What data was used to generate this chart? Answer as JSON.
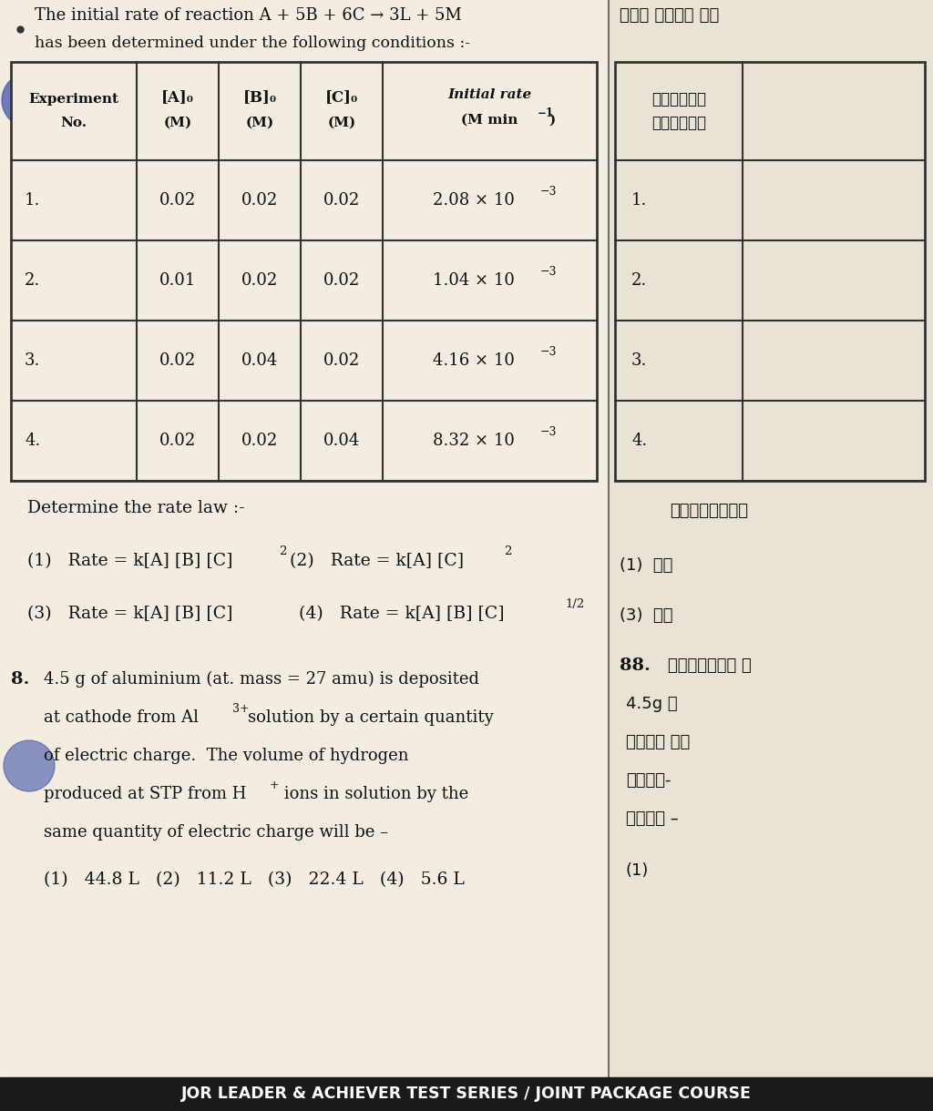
{
  "bg_color": "#e8e3d5",
  "left_bg": "#f2ede0",
  "right_bg": "#e8e3d5",
  "title_line1": "The initial rate of reaction A + 5B + 6C → 3L + 5M",
  "title_line2": "has been determined under the following conditions :-",
  "table_headers_col0": [
    "Experiment",
    "No."
  ],
  "table_headers_col1": [
    "[A]",
    "(M)"
  ],
  "table_headers_col2": [
    "[B]",
    "(M)"
  ],
  "table_headers_col3": [
    "[C]",
    "(M)"
  ],
  "table_headers_col4_line1": "Initial rate",
  "table_headers_col4_line2": "(M min",
  "table_data": [
    [
      "1.",
      "0.02",
      "0.02",
      "0.02",
      "2.08 × 10"
    ],
    [
      "2.",
      "0.01",
      "0.02",
      "0.02",
      "1.04 × 10"
    ],
    [
      "3.",
      "0.02",
      "0.04",
      "0.02",
      "4.16 × 10"
    ],
    [
      "4.",
      "0.02",
      "0.02",
      "0.04",
      "8.32 × 10"
    ]
  ],
  "rate_exponents": [
    "−3",
    "−3",
    "−3",
    "−3"
  ],
  "determine_text": "Determine the rate law :-",
  "opt1_part1": "(1)   Rate = k[A] [B] [C]",
  "opt1_sup": "2",
  "opt1_part2": "(2)   Rate = k[A] [C]",
  "opt1_sup2": "2",
  "opt2_part1": "(3)   Rate = k[A] [B] [C]",
  "opt2_part2": "   (4)   Rate = k[A] [B] [C]",
  "opt2_sup2": "1/2",
  "q8_num": "8.",
  "q8_line1": "4.5 g of aluminium (at. mass = 27 amu) is deposited",
  "q8_line2a": "at cathode from Al",
  "q8_line2b": "solution by a certain quantity",
  "q8_line2_sup": "3+",
  "q8_line3": "of electric charge.  The volume of hydrogen",
  "q8_line4a": "produced at STP from H",
  "q8_line4b": " ions in solution by the",
  "q8_line4_sup": "+",
  "q8_line5": "same quantity of electric charge will be –",
  "q8_opts": "(1)   44.8 L   (2)   11.2 L   (3)   22.4 L   (4)   5.6 L",
  "footer_text": "JOR LEADER & ACHIEVER TEST SERIES / JOINT PACKAGE COURSE",
  "footer_bg": "#1a1a1a",
  "right_header": "वेग मापन नि",
  "right_col1_h1": "प्रयोग",
  "right_col1_h2": "संख्या",
  "right_rows": [
    "1.",
    "2.",
    "3.",
    "4."
  ],
  "right_abhikriya": "अभिक्रिय",
  "right_opt1": "(1)  दर",
  "right_opt3": "(3)  दर",
  "q88_num": "88.",
  "q88_text1": "विद्युत अ",
  "q88_text2": "4.5g ऊ",
  "q88_text3": "होता है",
  "q88_text4": "विलय-",
  "q88_text5": "होगा –",
  "q88_opt": "(1)"
}
